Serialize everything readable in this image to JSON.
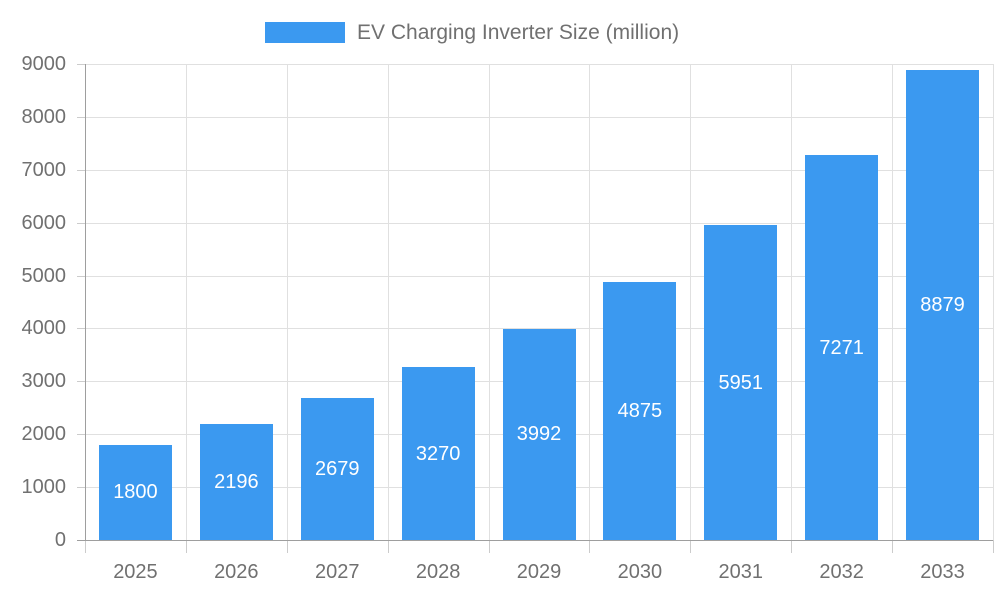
{
  "chart_data": {
    "type": "bar",
    "title": "EV Charging Inverter Size (million)",
    "series_name": "EV Charging Inverter Size (million)",
    "categories": [
      "2025",
      "2026",
      "2027",
      "2028",
      "2029",
      "2030",
      "2031",
      "2032",
      "2033"
    ],
    "values": [
      1800,
      2196,
      2679,
      3270,
      3992,
      4875,
      5951,
      7271,
      8879
    ],
    "xlabel": "",
    "ylabel": "",
    "ylim": [
      0,
      9000
    ],
    "yticks": [
      0,
      1000,
      2000,
      3000,
      4000,
      5000,
      6000,
      7000,
      8000,
      9000
    ],
    "legend_position": "top-center",
    "grid": true,
    "show_value_labels": true,
    "colors": {
      "bar": "#3B99F0",
      "value_label": "#FFFFFF",
      "axis_text": "#707070",
      "legend_text": "#707070",
      "gridline": "#E0E0E0",
      "axis_line": "#9E9E9E",
      "tick": "#CCCCCC",
      "background": "#FFFFFF"
    }
  }
}
